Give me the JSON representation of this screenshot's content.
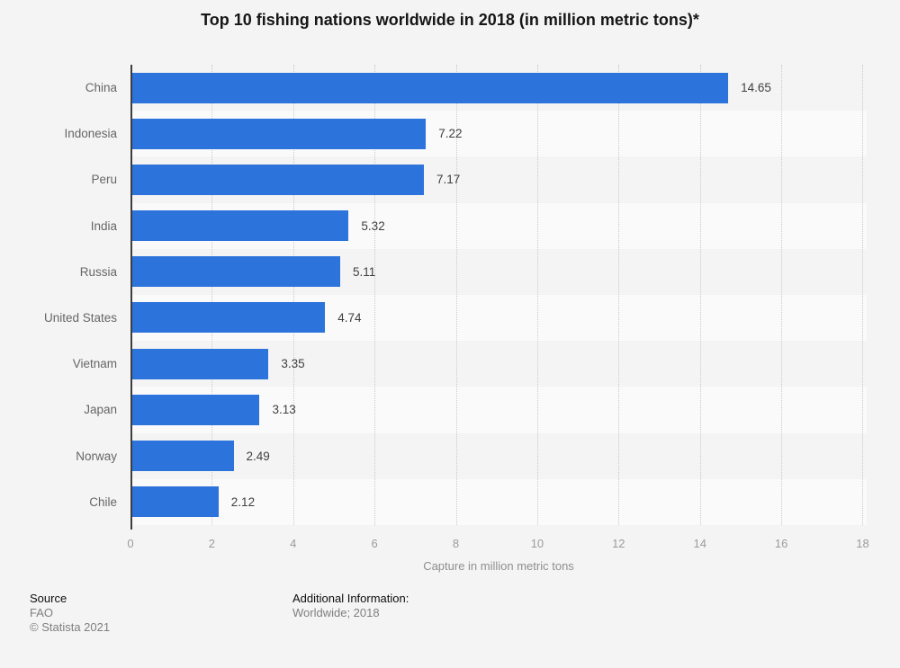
{
  "chart_data": {
    "type": "bar",
    "orientation": "horizontal",
    "title": "Top 10 fishing nations worldwide in 2018 (in million metric tons)*",
    "categories": [
      "China",
      "Indonesia",
      "Peru",
      "India",
      "Russia",
      "United States",
      "Vietnam",
      "Japan",
      "Norway",
      "Chile"
    ],
    "values": [
      14.65,
      7.22,
      7.17,
      5.32,
      5.11,
      4.74,
      3.35,
      3.13,
      2.49,
      2.12
    ],
    "value_labels": [
      "14.65",
      "7.22",
      "7.17",
      "5.32",
      "5.11",
      "4.74",
      "3.35",
      "3.13",
      "2.49",
      "2.12"
    ],
    "xlabel": "Capture in million metric tons",
    "ylabel": "",
    "xlim": [
      0,
      18.1
    ],
    "xticks": [
      0,
      2,
      4,
      6,
      8,
      10,
      12,
      14,
      16,
      18
    ],
    "grid": "vertical-dotted",
    "legend": "none",
    "bar_color": "#2d73dc",
    "row_band_colors": [
      "#f4f4f4",
      "#fafafa"
    ]
  },
  "footer": {
    "source_label": "Source",
    "source_value": "FAO",
    "copyright": "© Statista 2021",
    "additional_info_label": "Additional Information:",
    "additional_info_value": "Worldwide; 2018"
  },
  "colors": {
    "page_background": "#f4f4f4",
    "bar": "#2d73dc",
    "axis_line": "#3d3d3d",
    "gridline": "#c9c9c9",
    "title_text": "#161616",
    "category_text": "#666666",
    "value_text": "#3f3f3f",
    "tick_text": "#9b9b9b"
  }
}
